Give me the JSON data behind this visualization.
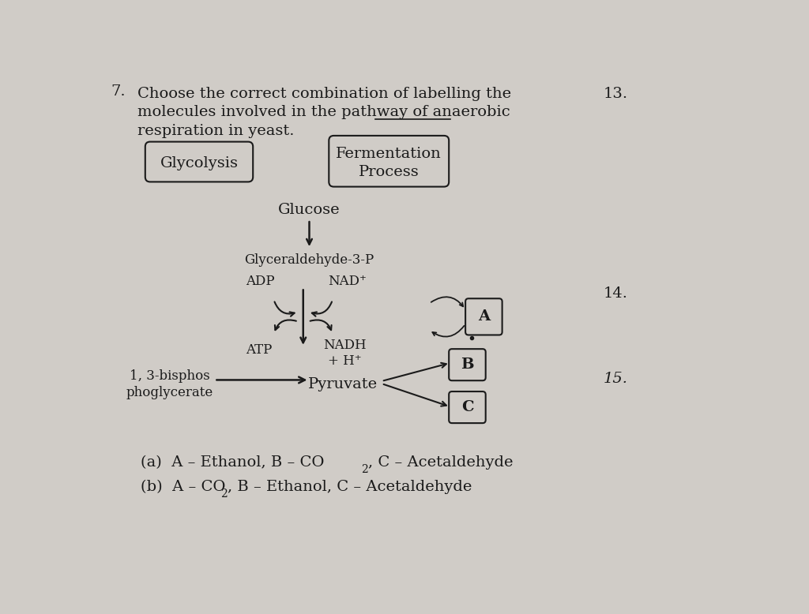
{
  "bg_color": "#d0ccc7",
  "text_color": "#1a1a1a",
  "fig_width": 10.24,
  "fig_height": 7.78,
  "title_num": "7.",
  "q_line1": "Choose the correct combination of labelling the",
  "q_line2": "molecules involved in the pathway of anaerobic",
  "q_line3": "respiration in yeast.",
  "box1_label": "Glycolysis",
  "box2_label": "Fermentation\nProcess",
  "glucose_label": "Glucose",
  "g3p_label": "Glyceraldehyde-3-P",
  "adp_label": "ADP",
  "atp_label": "ATP",
  "nad_label": "NAD⁺",
  "nadh_label": "NADH\n+ H⁺",
  "bisphos_label": "1, 3-bisphos\nphoglycerate",
  "pyruvate_label": "Pyruvate",
  "box_A": "A",
  "box_B": "B",
  "box_C": "C",
  "num_13": "13.",
  "num_14": "14.",
  "num_15": "15.",
  "opt_a1": "(a)  A – Ethanol, B – CO",
  "opt_a2": "2",
  "opt_a3": ", C – Acetaldehyde",
  "opt_b1": "(b)  A – CO",
  "opt_b2": "2",
  "opt_b3": ", B – Ethanol, C – Acetaldehyde"
}
